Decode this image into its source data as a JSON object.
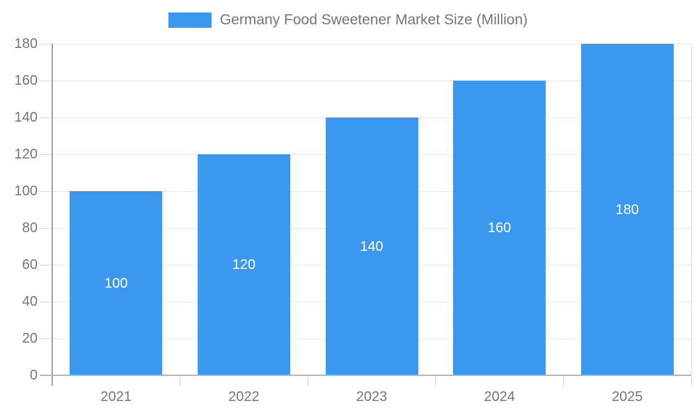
{
  "chart_data": {
    "type": "bar",
    "title": "Germany Food Sweetener Market Size (Million)",
    "categories": [
      "2021",
      "2022",
      "2023",
      "2024",
      "2025"
    ],
    "values": [
      100,
      120,
      140,
      160,
      180
    ],
    "series": [
      {
        "name": "Germany Food Sweetener Market Size (Million)",
        "values": [
          100,
          120,
          140,
          160,
          180
        ]
      }
    ],
    "data_labels": [
      "100",
      "120",
      "140",
      "160",
      "180"
    ],
    "xlabel": "",
    "ylabel": "",
    "ylim": [
      0,
      180
    ],
    "yticks": [
      0,
      20,
      40,
      60,
      80,
      100,
      120,
      140,
      160,
      180
    ],
    "grid": true,
    "legend_position": "top",
    "bar_color": "#3A99EE",
    "value_label_color": "#ffffff",
    "axis_text_color": "#757575",
    "grid_color": "#e6e6e6"
  }
}
